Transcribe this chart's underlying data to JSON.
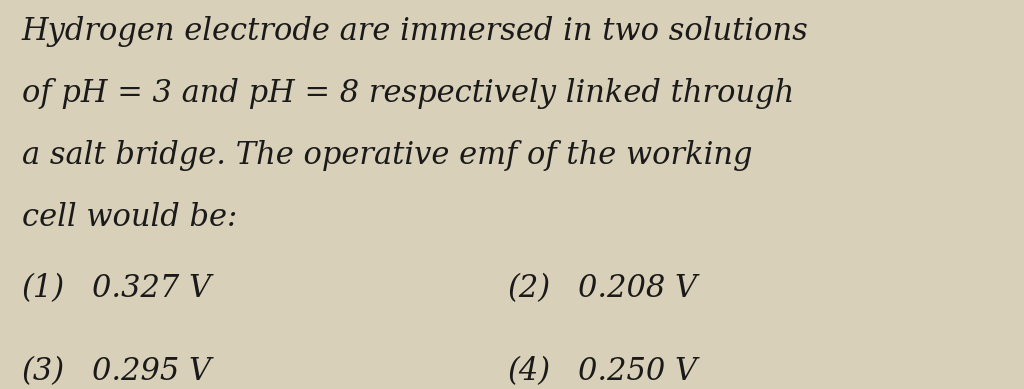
{
  "background_color": "#d8d0b8",
  "text_color": "#1a1a1a",
  "paragraph": "Hydrogen electrode are immersed in two solutions of pH = 3 and pH = 8 respectively linked through a salt bridge. The operative emf of the working cell would be:",
  "options": [
    {
      "num": "(1)",
      "val": "0.327 V"
    },
    {
      "num": "(2)",
      "val": "0.208 V"
    },
    {
      "num": "(3)",
      "val": "0.295 V"
    },
    {
      "num": "(4)",
      "val": "0.250 V"
    }
  ],
  "font_size_para": 22,
  "font_size_options": 22,
  "fig_width": 10.24,
  "fig_height": 3.89
}
